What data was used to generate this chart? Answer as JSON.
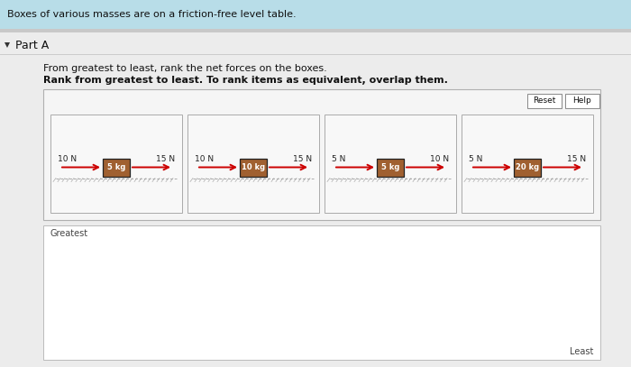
{
  "title_banner": "Boxes of various masses are on a friction-free level table.",
  "banner_bg": "#b8dde8",
  "page_bg": "#d8d8d8",
  "part_label": "Part A",
  "question1": "From greatest to least, rank the net forces on the boxes.",
  "question2": "Rank from greatest to least. To rank items as equivalent, overlap them.",
  "panel_bg": "#f0f0f0",
  "panel_border": "#bbbbbb",
  "box_fill": "#a06030",
  "box_border": "#222222",
  "arrow_color": "#cc0000",
  "table_line_color": "#999999",
  "boxes": [
    {
      "mass": "5 kg",
      "left_force": "10 N",
      "right_force": "15 N"
    },
    {
      "mass": "10 kg",
      "left_force": "10 N",
      "right_force": "15 N"
    },
    {
      "mass": "5 kg",
      "left_force": "5 N",
      "right_force": "10 N"
    },
    {
      "mass": "20 kg",
      "left_force": "5 N",
      "right_force": "15 N"
    }
  ],
  "reset_label": "Reset",
  "help_label": "Help",
  "greatest_label": "Greatest",
  "least_label": "Least",
  "bottom_panel_bg": "#ffffff",
  "bottom_panel_border": "#bbbbbb",
  "content_bg": "#ececec",
  "white_panel_bg": "#f5f5f5"
}
